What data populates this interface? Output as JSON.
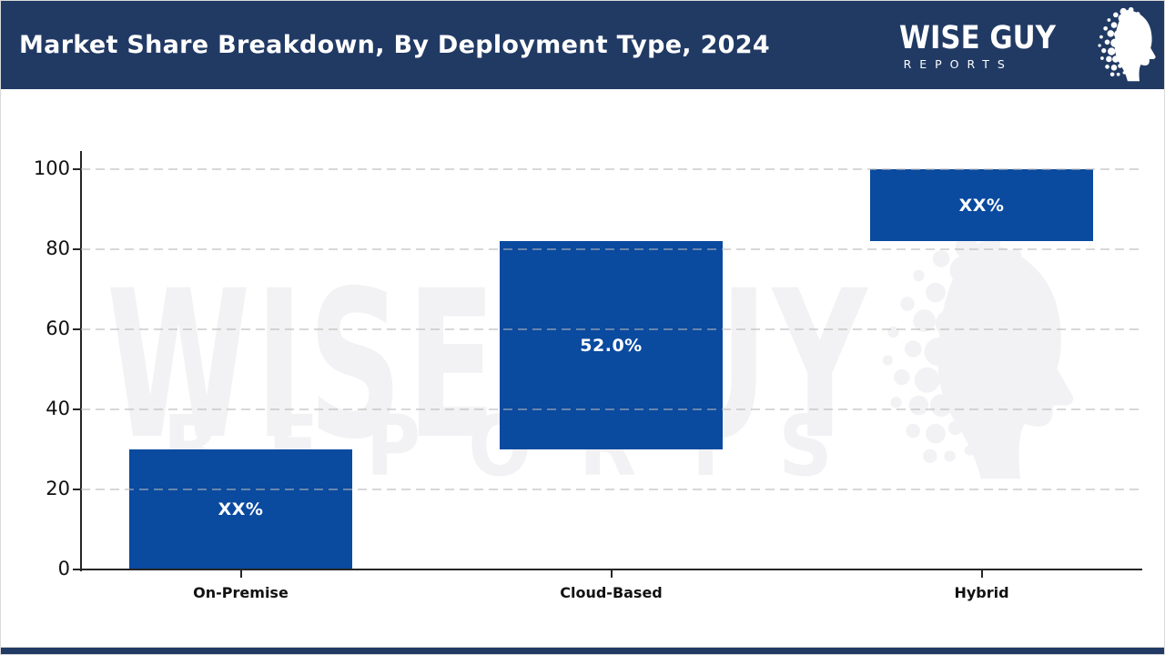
{
  "header": {
    "title": "Market Share Breakdown, By Deployment Type, 2024",
    "bg_color": "#213a64"
  },
  "logo": {
    "line1": "WISE GUY",
    "line2": "REPORTS",
    "head_icon": "dotted-head-profile",
    "color": "#ffffff"
  },
  "watermark": {
    "line1": "WISE GUY",
    "line2": "REPORTS",
    "color": "#f2f2f4"
  },
  "footer": {
    "bg_color": "#213a64"
  },
  "chart_data": {
    "type": "bar",
    "variant": "floating-waterfall",
    "title": "Market Share Breakdown, By Deployment Type, 2024",
    "categories": [
      "On-Premise",
      "Cloud-Based",
      "Hybrid"
    ],
    "bars": [
      {
        "category": "On-Premise",
        "start": 0,
        "end": 30,
        "value_label": "XX%"
      },
      {
        "category": "Cloud-Based",
        "start": 30,
        "end": 82,
        "value_label": "52.0%"
      },
      {
        "category": "Hybrid",
        "start": 82,
        "end": 100,
        "value_label": "XX%"
      }
    ],
    "y_ticks": [
      0,
      20,
      40,
      60,
      80,
      100
    ],
    "ylim": [
      0,
      100
    ],
    "xlabel": "",
    "ylabel": "",
    "grid": "horizontal-dashed",
    "legend": "none",
    "bar_color": "#0a4a9f",
    "value_label_color": "#ffffff",
    "axis_color": "#262626",
    "grid_color": "#dcdcdc"
  }
}
